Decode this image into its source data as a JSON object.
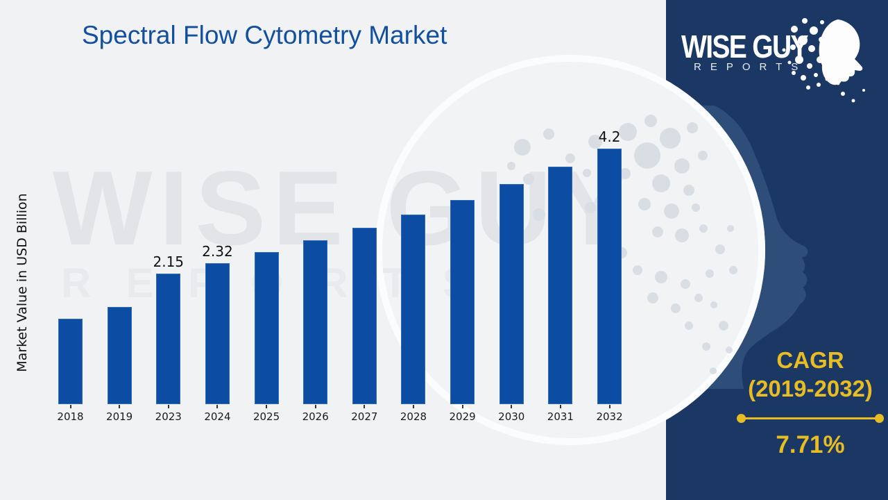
{
  "header": {
    "title": "Spectral Flow Cytometry Market"
  },
  "watermark": {
    "line1": "WISE GUY",
    "line2": "REPORTS"
  },
  "logo": {
    "line1": "WISE GUY",
    "line2": "REPORTS"
  },
  "cagr": {
    "heading": "CAGR",
    "range": "(2019-2032)",
    "value": "7.71%"
  },
  "colors": {
    "bar_blue": "#0c4ca2",
    "title_blue": "#124f9f",
    "panel_navy": "#1a3863",
    "face_navy": "#2e4d78",
    "accent_yellow": "#e8bd24",
    "chart_background": "#f1f2f3"
  },
  "chart_data": {
    "type": "bar",
    "title": "Spectral Flow Cytometry Market",
    "xlabel": "",
    "ylabel": "Market Value in USD Billion",
    "unit": "USD Billion",
    "categories": [
      "2018",
      "2019",
      "2023",
      "2024",
      "2025",
      "2026",
      "2027",
      "2028",
      "2029",
      "2030",
      "2031",
      "2032"
    ],
    "values": [
      1.4,
      1.6,
      2.15,
      2.32,
      2.5,
      2.69,
      2.9,
      3.12,
      3.36,
      3.62,
      3.9,
      4.2
    ],
    "bar_labels": [
      "",
      "",
      "2.15",
      "2.32",
      "",
      "",
      "",
      "",
      "",
      "",
      "",
      "4.2"
    ],
    "ylim": [
      0,
      4.6
    ],
    "grid": false,
    "legend": null,
    "bar_color": "#0c4ca2",
    "note": "values without printed labels are estimated from bar heights"
  }
}
